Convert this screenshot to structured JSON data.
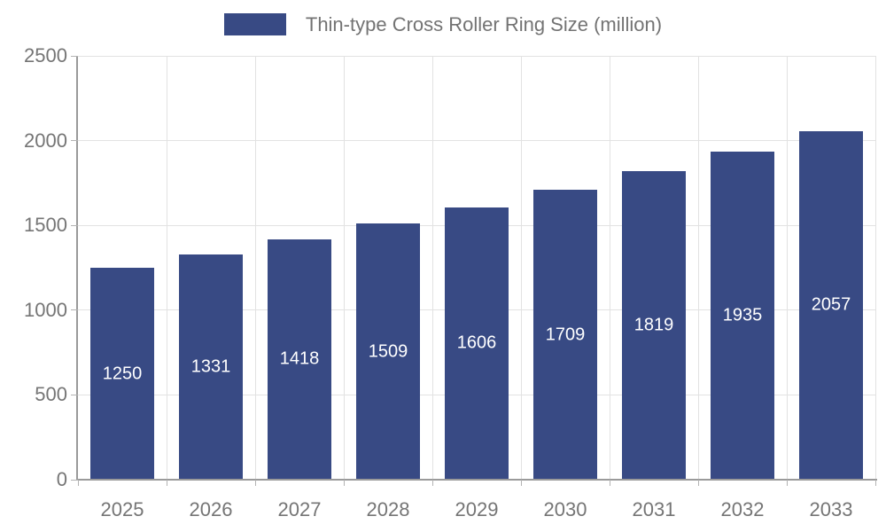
{
  "chart_data": {
    "type": "bar",
    "title": "Thin-type Cross Roller Ring Size (million)",
    "legend": {
      "label": "Thin-type Cross Roller Ring Size (million)",
      "position": "top"
    },
    "categories": [
      "2025",
      "2026",
      "2027",
      "2028",
      "2029",
      "2030",
      "2031",
      "2032",
      "2033"
    ],
    "series": [
      {
        "name": "Thin-type Cross Roller Ring Size (million)",
        "values": [
          1250,
          1331,
          1418,
          1509,
          1606,
          1709,
          1819,
          1935,
          2057
        ]
      }
    ],
    "xlabel": "",
    "ylabel": "",
    "ylim": [
      0,
      2500
    ],
    "yticks": [
      0,
      500,
      1000,
      1500,
      2000,
      2500
    ],
    "grid": true,
    "bar_labels_visible": true,
    "colors": {
      "bar": "#384A84",
      "bar_label_text": "#ffffff",
      "axis_text": "#757575",
      "legend_text": "#737373",
      "gridline": "#e2e2e2",
      "axis_line": "#9a9a9a",
      "tick_mark": "#b3b3b3",
      "background": "#ffffff"
    }
  }
}
